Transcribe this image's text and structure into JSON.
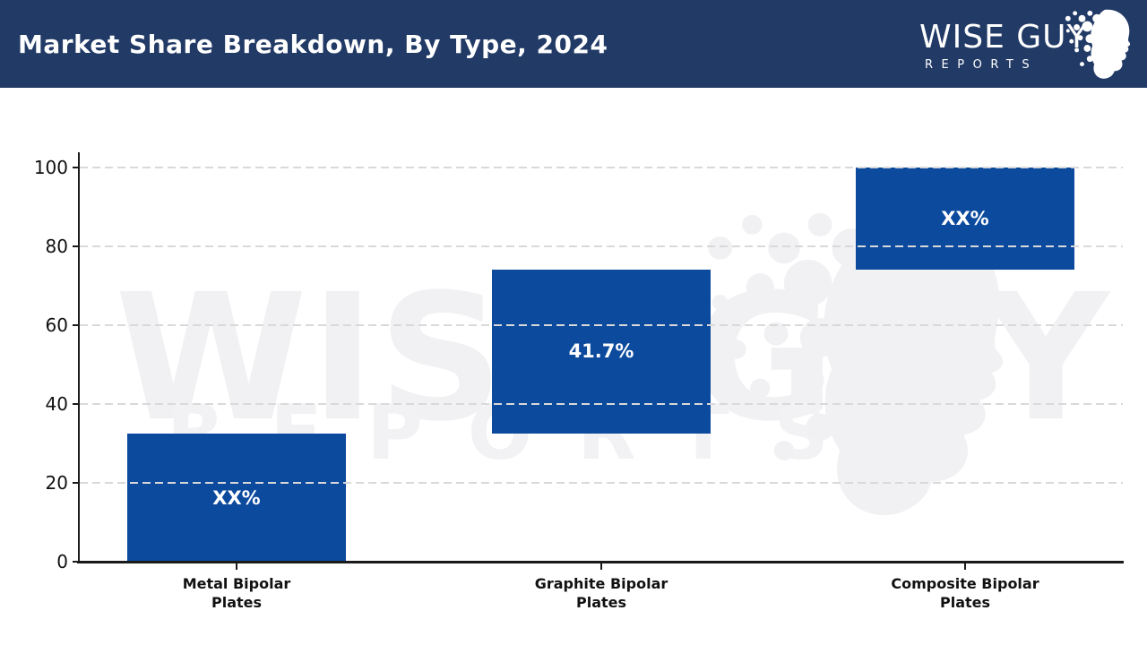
{
  "page": {
    "background": "#ffffff",
    "edge_line_color": "#d4d4d4"
  },
  "header": {
    "bg_color": "#223a66",
    "title": "Market Share Breakdown, By Type, 2024",
    "logo": {
      "brand": "WISE GUY",
      "brand_sub": "REPORTS"
    }
  },
  "watermark": {
    "brand": "WISE GUY",
    "brand_sub": "REPORTS"
  },
  "chart_data": {
    "type": "bar",
    "subtype": "waterfall-stacked-breakdown",
    "title": "Market Share Breakdown, By Type, 2024",
    "categories": [
      "Metal Bipolar Plates",
      "Graphite Bipolar Plates",
      "Composite Bipolar Plates"
    ],
    "segments": [
      {
        "category": "Metal Bipolar Plates",
        "label": "XX%",
        "start": 0,
        "end": 32.5
      },
      {
        "category": "Graphite Bipolar Plates",
        "label": "41.7%",
        "start": 32.5,
        "end": 74.2
      },
      {
        "category": "Composite Bipolar Plates",
        "label": "XX%",
        "start": 74.2,
        "end": 100
      }
    ],
    "xlabel": "",
    "ylabel": "",
    "ylim": [
      0,
      100
    ],
    "yticks": [
      0,
      20,
      40,
      60,
      80,
      100
    ],
    "grid": "horizontal-dashed",
    "legend": "none",
    "bar_color": "#0c4a9e",
    "bar_label_color": "#ffffff",
    "grid_color": "#d9d9d9",
    "axis_color": "#1a1a1a",
    "tick_label_color": "#111111"
  }
}
